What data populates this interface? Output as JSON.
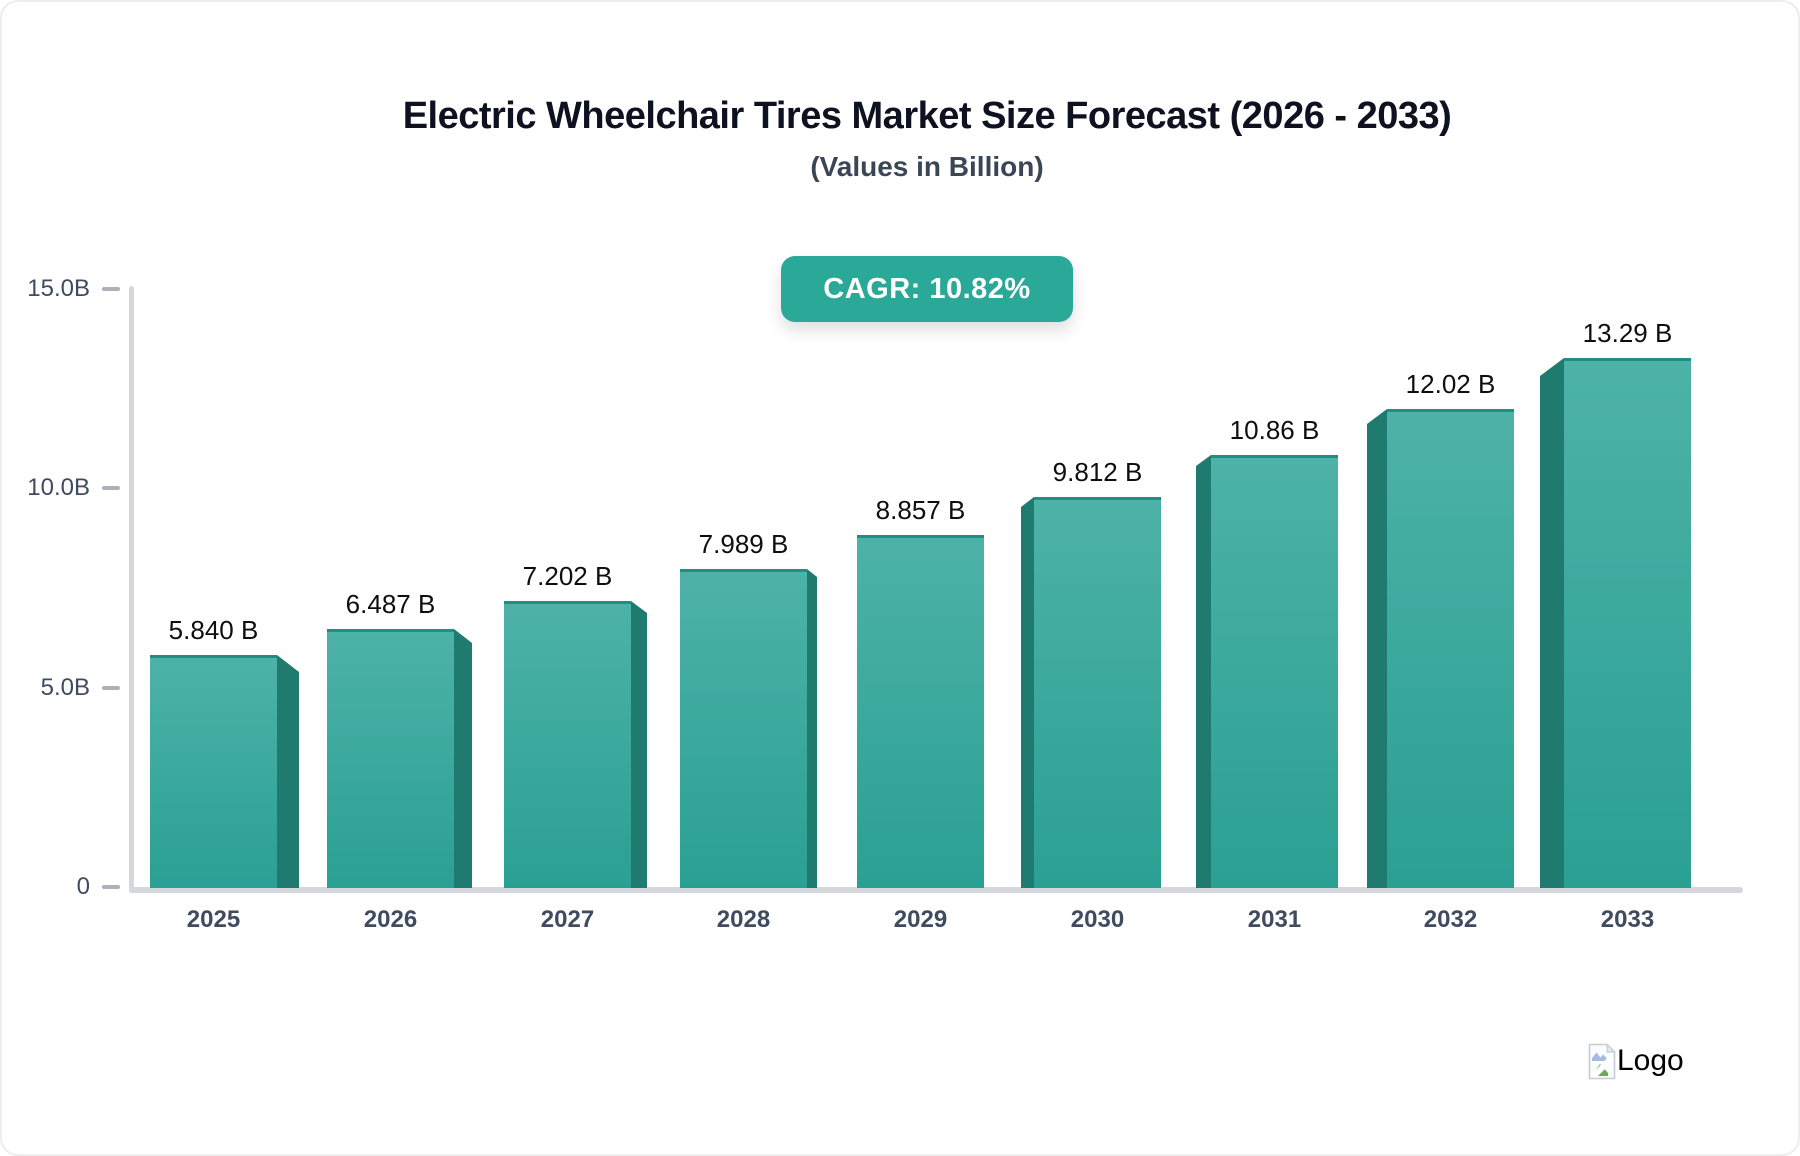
{
  "chart_data": {
    "type": "bar",
    "title": "Electric Wheelchair Tires Market Size Forecast (2026 - 2033)",
    "subtitle": "(Values in Billion)",
    "cagr_badge": "CAGR: 10.82%",
    "categories": [
      "2025",
      "2026",
      "2027",
      "2028",
      "2029",
      "2030",
      "2031",
      "2032",
      "2033"
    ],
    "values": [
      5.84,
      6.487,
      7.202,
      7.989,
      8.857,
      9.812,
      10.86,
      12.02,
      13.29
    ],
    "value_labels": [
      "5.840 B",
      "6.487 B",
      "7.202 B",
      "7.989 B",
      "8.857 B",
      "9.812 B",
      "10.86 B",
      "12.02 B",
      "13.29 B"
    ],
    "xlabel": "",
    "ylabel": "",
    "ylim": [
      0,
      15
    ],
    "yticks": [
      {
        "label": "15.0B",
        "value": 15
      },
      {
        "label": "10.0B",
        "value": 10
      },
      {
        "label": "5.0B",
        "value": 5
      },
      {
        "label": "0",
        "value": 0
      }
    ],
    "grid": false,
    "legend": "none",
    "colors": {
      "bar_face_top": "#4db2a7",
      "bar_face_bottom": "#2aa093",
      "bar_face_edge": "rgba(16,102,92,0.30)",
      "bar_side": "#1f7b70",
      "axis_line": "#d4d8de",
      "tick_dash": "#aab1bb",
      "tick_label": "#3f4b5e",
      "x_label": "#3f4b5e",
      "value_label": "#0e0e0e",
      "badge_bg": "#2aa898",
      "badge_text": "#ffffff"
    }
  },
  "footer": {
    "logo_text": "Logo"
  }
}
